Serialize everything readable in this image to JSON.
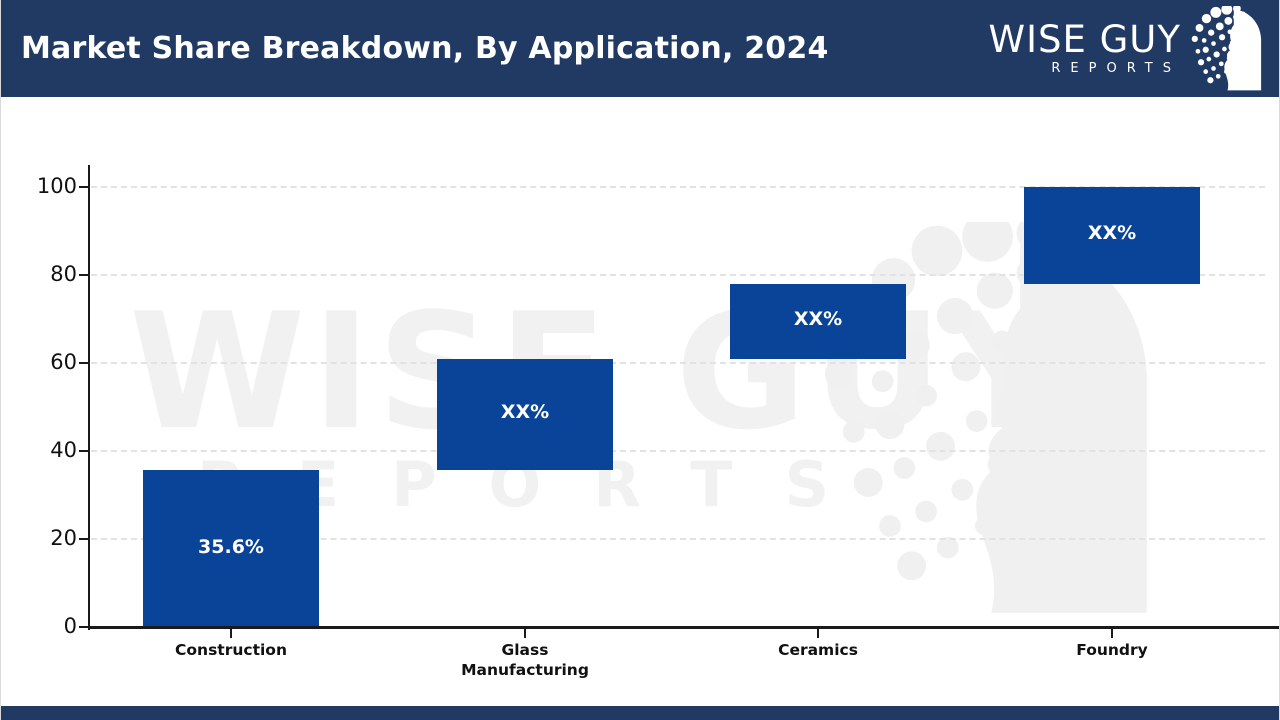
{
  "header": {
    "title": "Market Share Breakdown, By Application, 2024",
    "logo": {
      "line1": "WISE GUY",
      "line2": "REPORTS"
    }
  },
  "watermark": {
    "line1": "WISE GUY",
    "line2": "REPORTS"
  },
  "chart_data": {
    "type": "bar",
    "subtype": "waterfall",
    "title": "Market Share Breakdown, By Application, 2024",
    "categories": [
      "Construction",
      "Glass Manufacturing",
      "Ceramics",
      "Foundry"
    ],
    "segments": [
      {
        "category": "Construction",
        "start": 0,
        "end": 35.6,
        "value_label": "35.6%"
      },
      {
        "category": "Glass Manufacturing",
        "start": 35.6,
        "end": 61,
        "value_label": "XX%"
      },
      {
        "category": "Ceramics",
        "start": 61,
        "end": 78,
        "value_label": "XX%"
      },
      {
        "category": "Foundry",
        "start": 78,
        "end": 100,
        "value_label": "XX%"
      }
    ],
    "yticks": [
      0,
      20,
      40,
      60,
      80,
      100
    ],
    "ylim": [
      0,
      105
    ],
    "xlabel": "",
    "ylabel": "",
    "grid": "horizontal-dashed",
    "legend": "none"
  },
  "colors": {
    "header_bg": "#203a64",
    "footer_bg": "#203a64",
    "bar": "#0a4499",
    "bar_label": "#ffffff",
    "watermark": "#f1f1f1",
    "grid": "#e2e2e2",
    "axis": "#1a1a1a"
  }
}
